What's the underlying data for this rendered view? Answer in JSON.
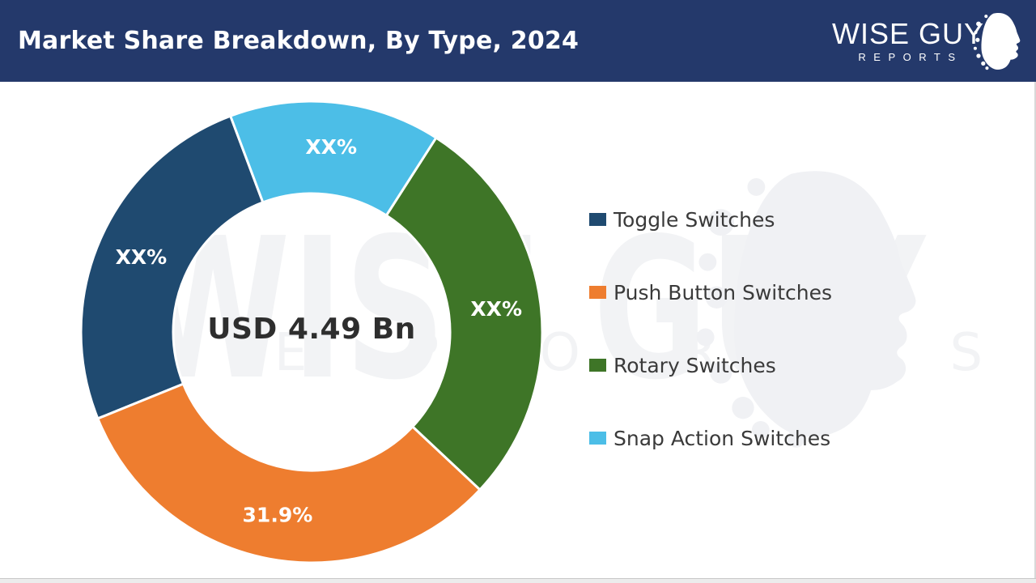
{
  "header": {
    "title": "Market Share Breakdown, By Type, 2024",
    "bg_color": "#24396B",
    "logo": {
      "name": "WISE GUY",
      "tagline": "REPORTS"
    }
  },
  "chart_data": {
    "type": "pie",
    "subtype": "donut",
    "title": "Market Share Breakdown, By Type, 2024",
    "center_label": "USD 4.49 Bn",
    "legend_position": "right",
    "start_angle_deg": 110.6,
    "direction": "counterclockwise",
    "segments": [
      {
        "label": "Toggle Switches",
        "displayed_value": "XX%",
        "percent_est": 25.4,
        "color": "#1F4A70"
      },
      {
        "label": "Push Button Switches",
        "displayed_value": "31.9%",
        "percent_est": 31.9,
        "color": "#EE7D2F"
      },
      {
        "label": "Rotary Switches",
        "displayed_value": "XX%",
        "percent_est": 27.9,
        "color": "#3E7527"
      },
      {
        "label": "Snap Action Switches",
        "displayed_value": "XX%",
        "percent_est": 14.8,
        "color": "#4CBEE7"
      }
    ]
  },
  "watermark": {
    "line1": "WISE GUY",
    "line2": "R E P O R T S"
  }
}
